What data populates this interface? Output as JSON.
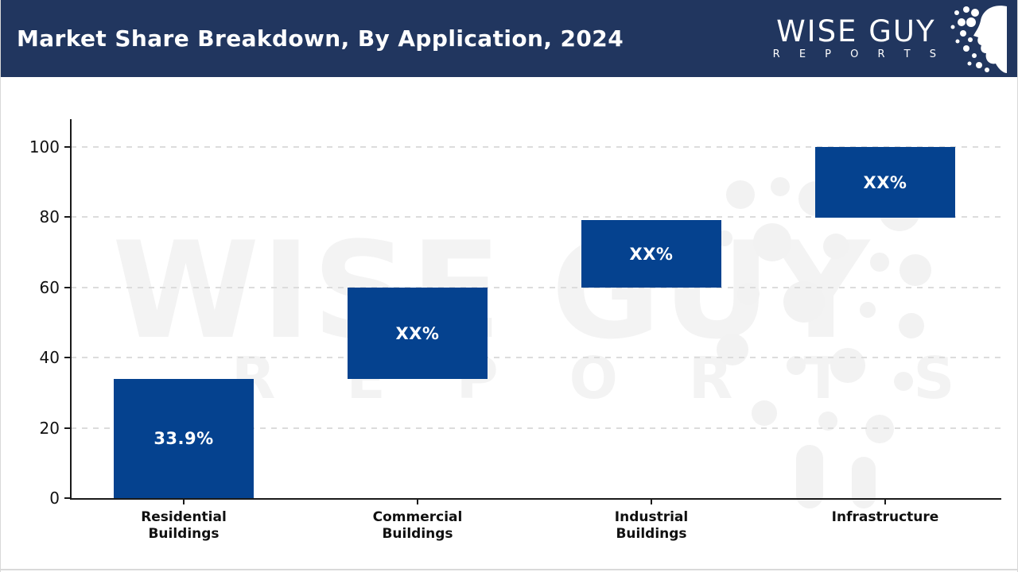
{
  "header": {
    "title": "Market Share Breakdown, By Application, 2024",
    "bg_color": "#21365F",
    "logo": {
      "wordmark": "WISE GUY",
      "subtext": "R E P O R T S"
    }
  },
  "watermark": {
    "line1": "WISE GUY",
    "line2": "R E P O R T S"
  },
  "chart_data": {
    "type": "bar",
    "subtype": "waterfall",
    "title": "Market Share Breakdown, By Application, 2024",
    "xlabel": "",
    "ylabel": "",
    "ylim": [
      0,
      105
    ],
    "yticks": [
      0,
      20,
      40,
      60,
      80,
      100
    ],
    "grid": true,
    "bar_color": "#05428F",
    "grid_color": "#dcdcdc",
    "categories": [
      [
        "Residential",
        "Buildings"
      ],
      [
        "Commercial",
        "Buildings"
      ],
      [
        "Industrial",
        "Buildings"
      ],
      [
        "Infrastructure"
      ]
    ],
    "segments": [
      {
        "category": "Residential Buildings",
        "from": 0,
        "to": 33.9,
        "label": "33.9%"
      },
      {
        "category": "Commercial Buildings",
        "from": 33.9,
        "to": 59.9,
        "label": "XX%"
      },
      {
        "category": "Industrial Buildings",
        "from": 59.9,
        "to": 79.1,
        "label": "XX%"
      },
      {
        "category": "Infrastructure",
        "from": 79.8,
        "to": 99.9,
        "label": "XX%"
      }
    ]
  }
}
